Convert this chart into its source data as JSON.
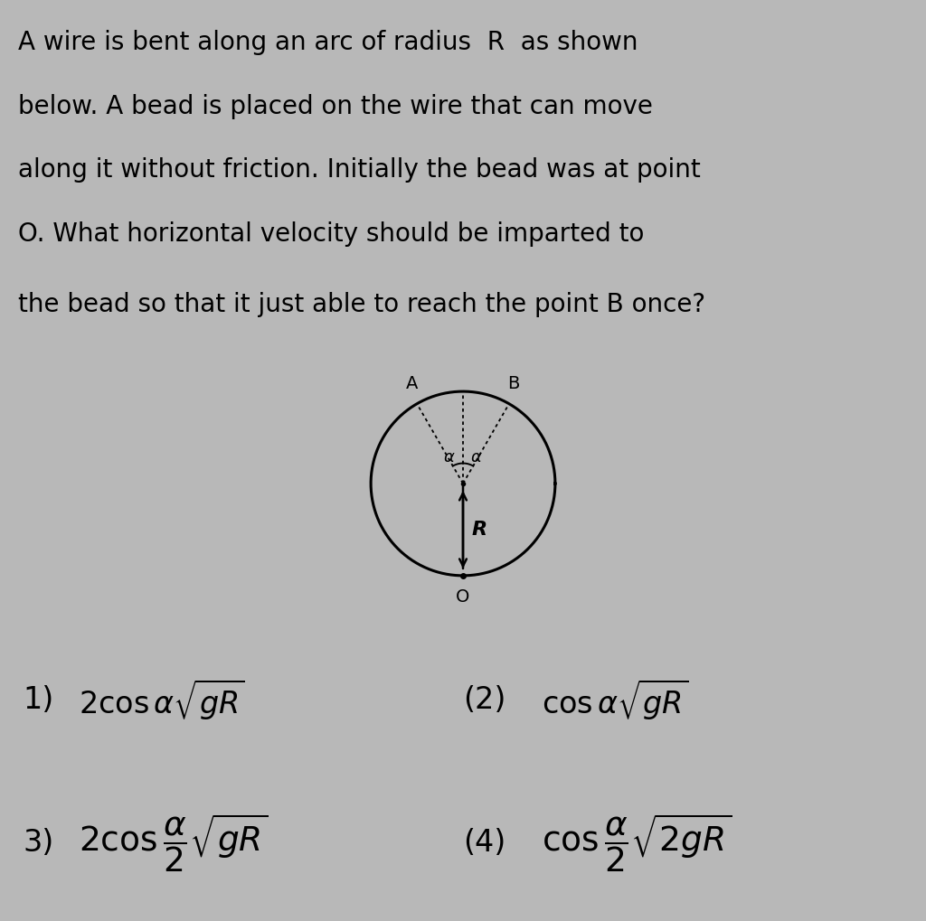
{
  "bg_top": "#b8b8b8",
  "bg_diagram": "#d8d8d8",
  "bg_options": "#d8d8d8",
  "title_lines": [
    "A wire is bent along an arc of radius  R  as shown",
    "below. A bead is placed on the wire that can move",
    "along it without friction. Initially the bead was at point",
    "O. What horizontal velocity should be imparted to",
    "the bead so that it just able to reach the point B once?"
  ],
  "alpha_deg": 30,
  "circle_r": 1.0
}
